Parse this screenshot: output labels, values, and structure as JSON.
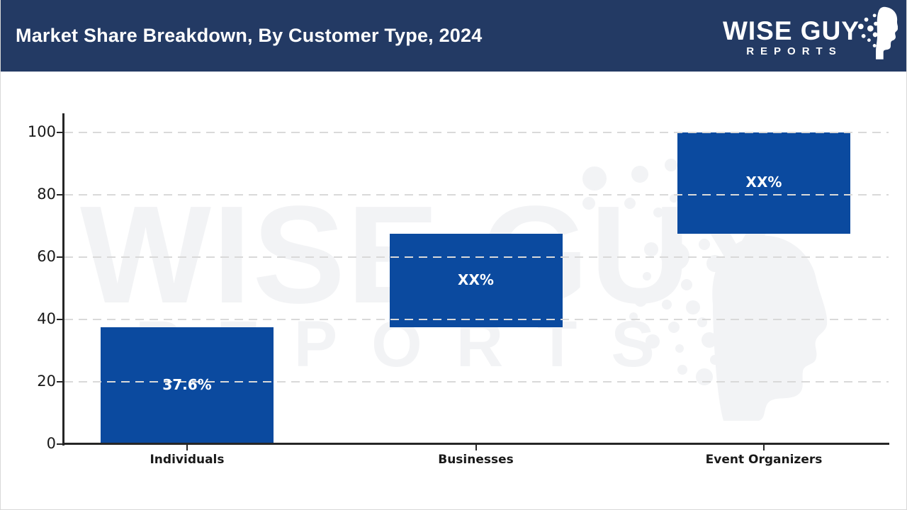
{
  "header": {
    "title": "Market Share Breakdown, By Customer Type, 2024",
    "bg_color": "#233a64",
    "logo": {
      "line1": "WISE GUY",
      "line2": "REPORTS"
    }
  },
  "watermark": {
    "line1": "WISE GUY",
    "line2": "REPORTS"
  },
  "chart_data": {
    "type": "bar",
    "subtype": "waterfall",
    "title": "Market Share Breakdown, By Customer Type, 2024",
    "categories": [
      "Individuals",
      "Businesses",
      "Event Organizers"
    ],
    "segments": [
      {
        "category": "Individuals",
        "start": 0,
        "end": 37.6,
        "label": "37.6%"
      },
      {
        "category": "Businesses",
        "start": 37.6,
        "end": 67.6,
        "label": "XX%"
      },
      {
        "category": "Event Organizers",
        "start": 67.6,
        "end": 100,
        "label": "XX%"
      }
    ],
    "yticks": [
      "0",
      "20",
      "40",
      "60",
      "80",
      "100"
    ],
    "ytick_values": [
      0,
      20,
      40,
      60,
      80,
      100
    ],
    "ylim": [
      0,
      100
    ],
    "xlabel": "",
    "ylabel": "",
    "grid": "horizontal-dashed",
    "legend": "none",
    "bar_color": "#0b4a9f",
    "bar_label_color": "#ffffff",
    "axis_color": "#262626",
    "grid_color": "#d9d9d9"
  }
}
